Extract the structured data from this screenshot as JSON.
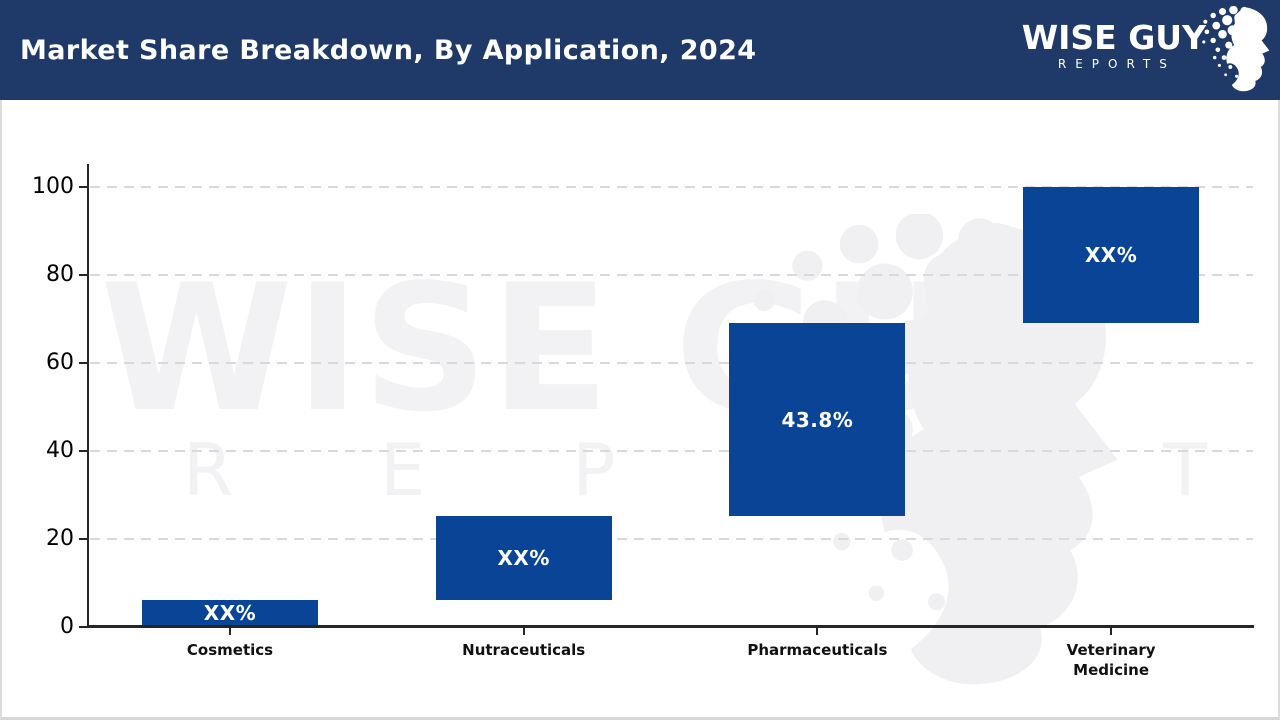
{
  "header": {
    "title": "Market Share Breakdown, By Application, 2024",
    "bg_color": "#1f3a68",
    "logo": {
      "line1": "WISE GUY",
      "line2": "REPORTS"
    }
  },
  "watermark": {
    "line1": "WISE GUY",
    "line2": "R E P O R T S"
  },
  "chart_data": {
    "type": "bar",
    "subtype": "waterfall-floating-bars",
    "title": "Market Share Breakdown, By Application, 2024",
    "categories": [
      "Cosmetics",
      "Nutraceuticals",
      "Pharmaceuticals",
      "Veterinary Medicine"
    ],
    "segments": [
      {
        "category": "Cosmetics",
        "start": 0,
        "end": 6.2,
        "value_label": "XX%"
      },
      {
        "category": "Nutraceuticals",
        "start": 6.2,
        "end": 25.2,
        "value_label": "XX%"
      },
      {
        "category": "Pharmaceuticals",
        "start": 25.2,
        "end": 69.0,
        "value_label": "43.8%"
      },
      {
        "category": "Veterinary Medicine",
        "start": 69.0,
        "end": 100,
        "value_label": "XX%"
      }
    ],
    "series": [
      {
        "name": "Market Share %",
        "values": [
          6.2,
          19.0,
          43.8,
          31.0
        ]
      }
    ],
    "displayed_labels": [
      "XX%",
      "XX%",
      "43.8%",
      "XX%"
    ],
    "yticks": [
      0,
      20,
      40,
      60,
      80,
      100
    ],
    "ylim": [
      0,
      105
    ],
    "xlabel": "",
    "ylabel": "",
    "grid": "horizontal-dashed",
    "legend": "none",
    "bar_color": "#0a4496",
    "label_color": "#ffffff",
    "axis_color": "#262626",
    "grid_color": "#d9d9d9"
  }
}
